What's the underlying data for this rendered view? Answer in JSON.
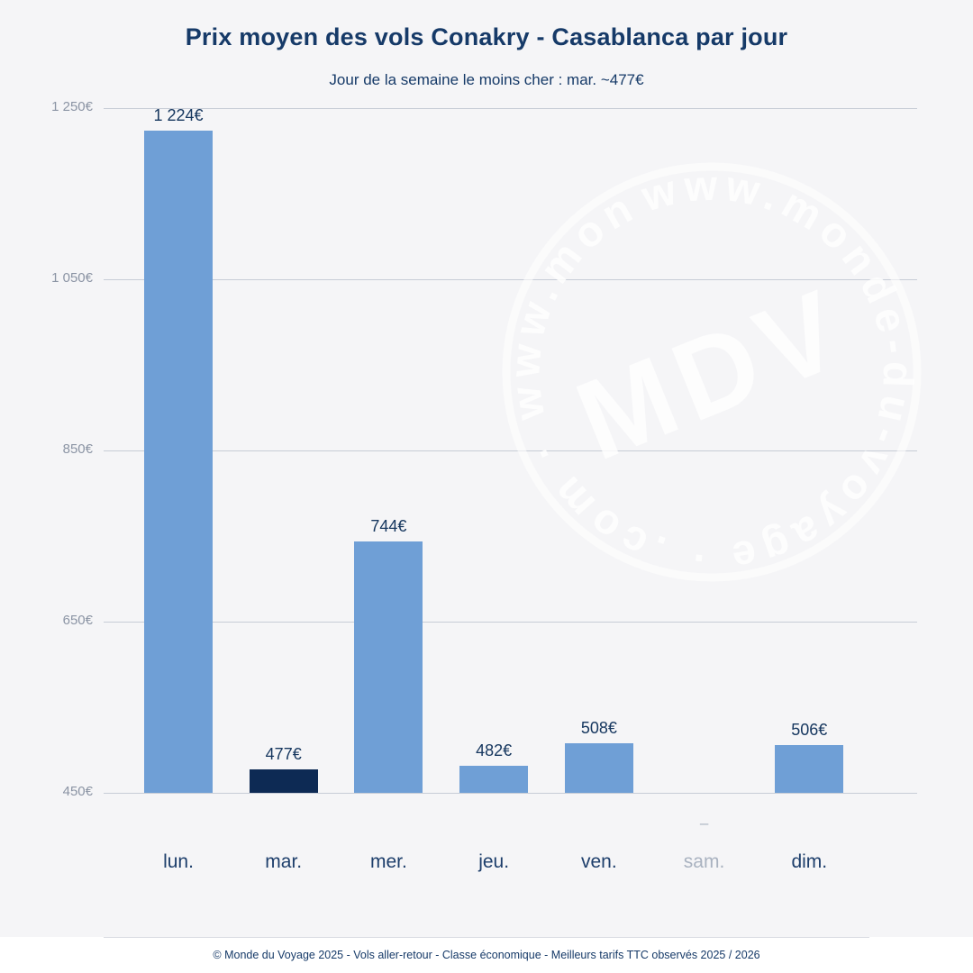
{
  "title": "Prix moyen des vols Conakry - Casablanca par jour",
  "subtitle": "Jour de la semaine le moins cher : mar. ~477€",
  "footer": "© Monde du Voyage 2025 - Vols aller-retour - Classe économique - Meilleurs tarifs TTC observés 2025 / 2026",
  "watermark": {
    "ring_text": "www.monde-du-voyage · .com · www.monde-du-voyage · .com",
    "center_text": "MDV"
  },
  "colors": {
    "background": "#f5f5f7",
    "bar": "#6f9fd6",
    "bar_highlight": "#0d2a54",
    "title": "#163a68",
    "value_label": "#15365e",
    "axis_tick": "#8b94a4",
    "grid": "#c7ccd6",
    "muted": "#a9b2c0",
    "footer_background": "#ffffff"
  },
  "chart_data": {
    "type": "bar",
    "title": "Prix moyen des vols Conakry - Casablanca par jour",
    "subtitle": "Jour de la semaine le moins cher : mar. ~477€",
    "categories": [
      "lun.",
      "mar.",
      "mer.",
      "jeu.",
      "ven.",
      "sam.",
      "dim."
    ],
    "values": [
      1224,
      477,
      744,
      482,
      508,
      null,
      506
    ],
    "value_labels": [
      "1 224€",
      "477€",
      "744€",
      "482€",
      "508€",
      null,
      "506€"
    ],
    "highlight_index": 1,
    "y_ticks": [
      "1 250€",
      "1 050€",
      "850€",
      "650€",
      "450€"
    ],
    "ylim": [
      450,
      1250
    ],
    "grid": "horizontal",
    "legend": "none",
    "no_data_marker": "–"
  }
}
